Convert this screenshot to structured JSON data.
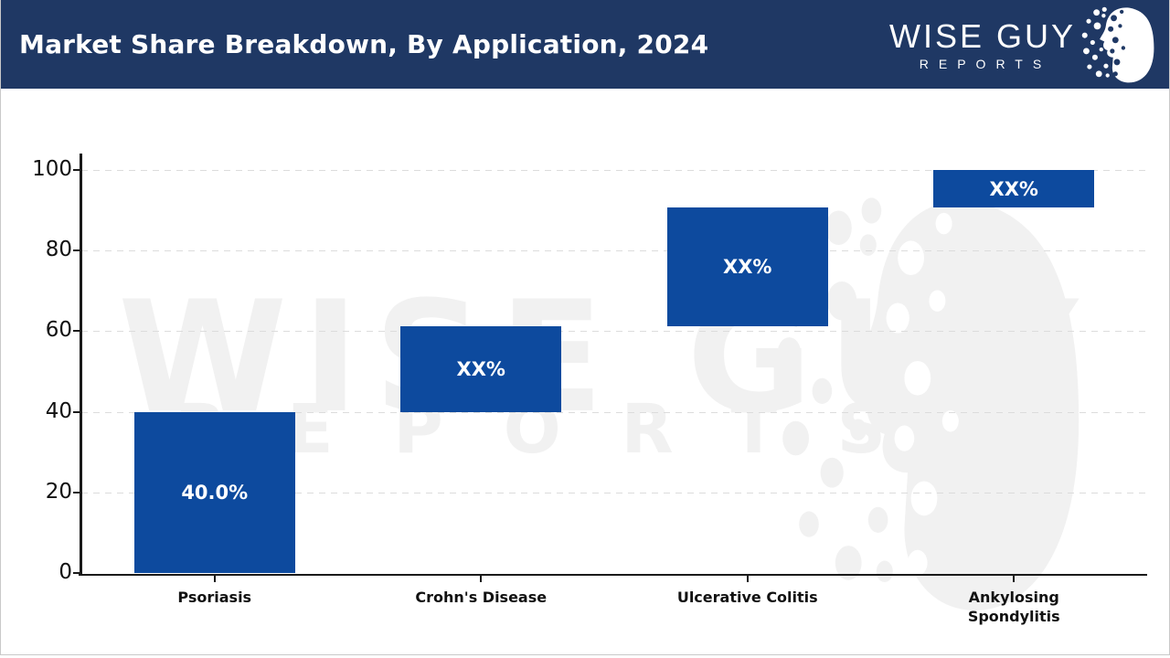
{
  "header": {
    "title": "Market Share Breakdown, By Application, 2024",
    "bg_color": "#1f3864",
    "logo": {
      "line1": "WISE GUY",
      "line2": "REPORTS"
    }
  },
  "watermark": {
    "line1": "WISE GUY",
    "line2": "REPORTS"
  },
  "chart_data": {
    "type": "bar",
    "subtype": "waterfall-floating-bars",
    "title": "Market Share Breakdown, By Application, 2024",
    "categories": [
      "Psoriasis",
      "Crohn's Disease",
      "Ulcerative Colitis",
      "Ankylosing Spondylitis"
    ],
    "segments": [
      {
        "category": "Psoriasis",
        "start": 0,
        "end": 40,
        "label": "40.0%"
      },
      {
        "category": "Crohn's Disease",
        "start": 40,
        "end": 61.3,
        "label": "XX%"
      },
      {
        "category": "Ulcerative Colitis",
        "start": 61.3,
        "end": 90.6,
        "label": "XX%"
      },
      {
        "category": "Ankylosing Spondylitis",
        "start": 90.6,
        "end": 100,
        "label": "XX%"
      }
    ],
    "yticks": [
      0,
      20,
      40,
      60,
      80,
      100
    ],
    "ylim": [
      0,
      103.5
    ],
    "xlabel": "",
    "ylabel": "",
    "grid": "horizontal-dashed",
    "gridline_color": "#dcdcdc",
    "bar_color": "#0d4a9e",
    "bar_label_color": "#ffffff",
    "legend": "none"
  }
}
